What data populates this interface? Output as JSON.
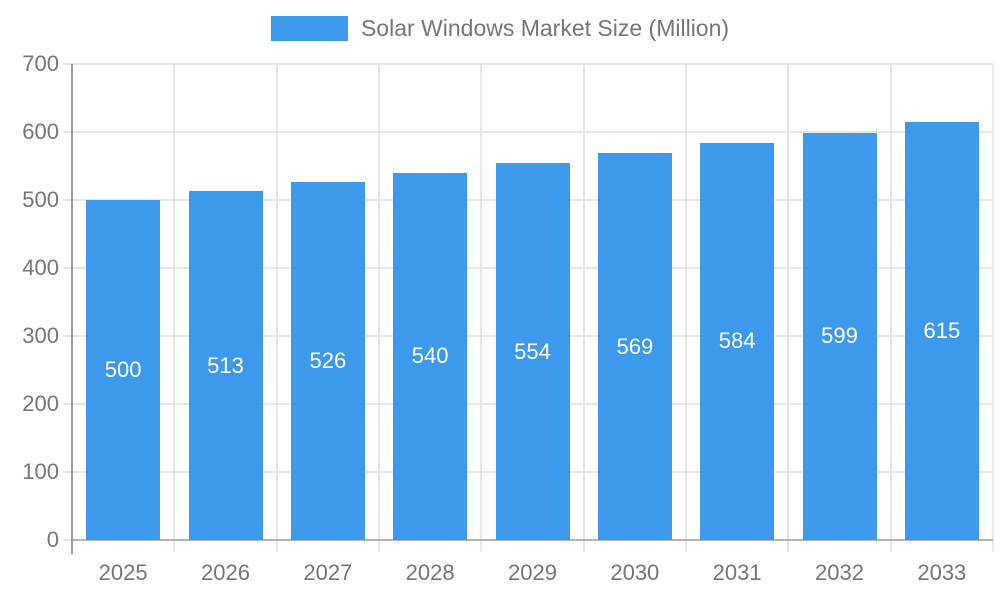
{
  "chart_data": {
    "type": "bar",
    "title": "Solar Windows Market Size (Million)",
    "legend": {
      "position": "top",
      "entries": [
        "Solar Windows Market Size (Million)"
      ]
    },
    "categories": [
      "2025",
      "2026",
      "2027",
      "2028",
      "2029",
      "2030",
      "2031",
      "2032",
      "2033"
    ],
    "series": [
      {
        "name": "Solar Windows Market Size (Million)",
        "values": [
          500,
          513,
          526,
          540,
          554,
          569,
          584,
          599,
          615
        ]
      }
    ],
    "data_labels": [
      "500",
      "513",
      "526",
      "540",
      "554",
      "569",
      "584",
      "599",
      "615"
    ],
    "xlabel": "",
    "ylabel": "",
    "ylim": [
      0,
      700
    ],
    "yticks": [
      0,
      100,
      200,
      300,
      400,
      500,
      600,
      700
    ],
    "grid": true,
    "colors": {
      "bar": "#3C99EC",
      "bar_label_text": "#FFFFFF",
      "axis_text": "#757575",
      "legend_text": "#757575",
      "gridline": "#E6E6E6",
      "axis_line": "#9E9E9E",
      "baseline": "#B3B3B3",
      "background": "#FFFFFF"
    }
  }
}
